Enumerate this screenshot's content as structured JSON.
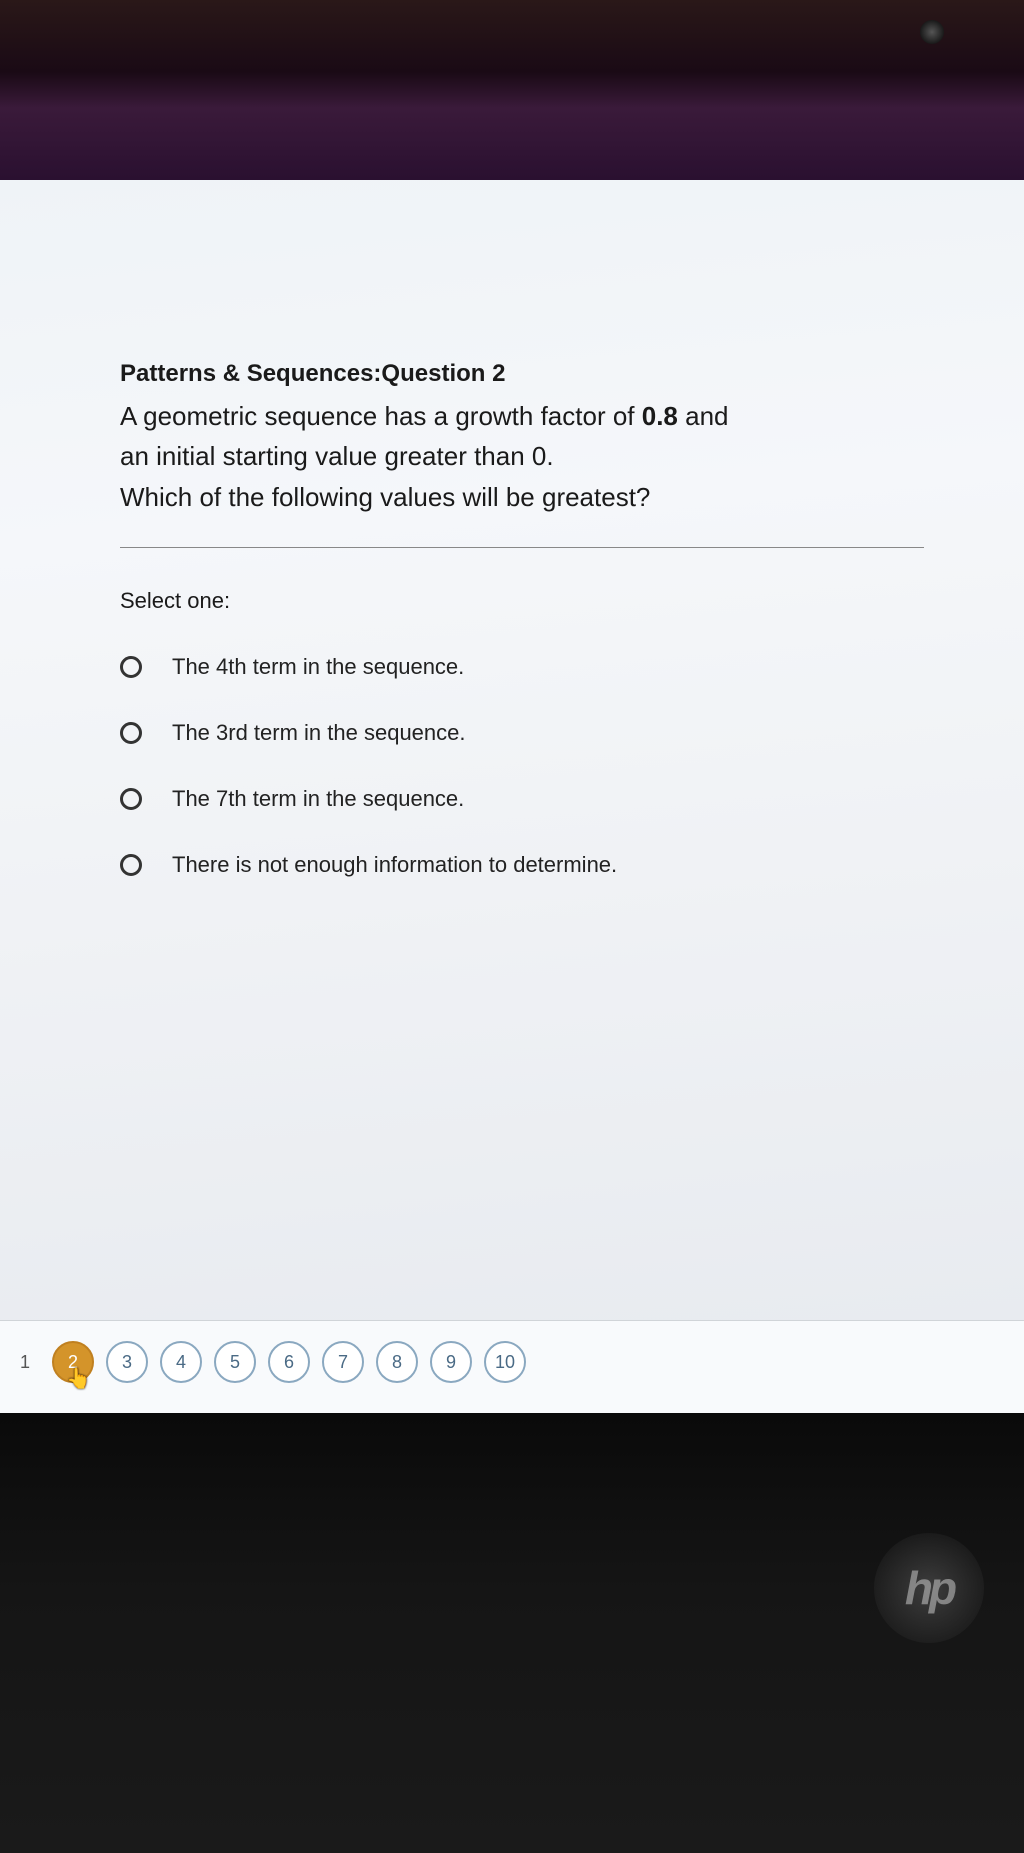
{
  "question": {
    "header": "Patterns & Sequences:Question 2",
    "line1_pre": "A geometric sequence has a growth factor of ",
    "line1_bold": "0.8",
    "line1_post": " and",
    "line2": "an initial starting value greater than 0.",
    "line3": "Which of the following values will be greatest?",
    "select_label": "Select one:",
    "options": [
      "The 4th term in the sequence.",
      "The 3rd term in the sequence.",
      "The 7th term in the sequence.",
      "There is not enough information to determine."
    ]
  },
  "pager": {
    "items": [
      "1",
      "2",
      "3",
      "4",
      "5",
      "6",
      "7",
      "8",
      "9",
      "10"
    ],
    "active_index": 1,
    "plain_index": 0
  },
  "brand": "hp",
  "colors": {
    "screen_bg": "#f5f7fa",
    "text": "#1a1a1a",
    "divider": "#888888",
    "radio_border": "#333333",
    "pager_border": "#8aa8c0",
    "pager_text": "#4a6a85",
    "pager_active_bg": "#d4942a",
    "pager_active_border": "#c08020",
    "bezel": "#1a1a1a"
  },
  "typography": {
    "header_fontsize": 24,
    "body_fontsize": 26,
    "option_fontsize": 22,
    "pager_fontsize": 18
  }
}
